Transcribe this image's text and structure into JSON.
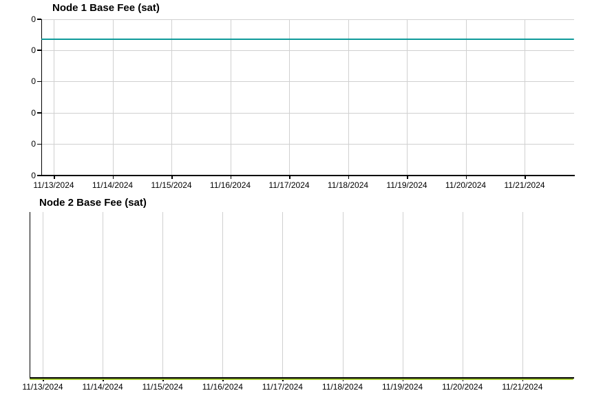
{
  "page": {
    "background_color": "#ffffff"
  },
  "chart_data": [
    {
      "type": "line",
      "title": "Node 1 Base Fee (sat)",
      "xlabel": "",
      "ylabel": "",
      "x": [
        "11/13/2024",
        "11/14/2024",
        "11/15/2024",
        "11/16/2024",
        "11/17/2024",
        "11/18/2024",
        "11/19/2024",
        "11/20/2024",
        "11/21/2024"
      ],
      "y_tick_labels": [
        "0",
        "0",
        "0",
        "0",
        "0",
        "0"
      ],
      "y_axis_note": "all six y-axis tick labels render as 0; axis treated as normalized 0-1",
      "ylim": [
        0,
        1
      ],
      "grid": "both",
      "legend": "none",
      "series": [
        {
          "name": "Node 1 Base Fee",
          "color": "#0d9a9a",
          "values": [
            0.87,
            0.87,
            0.87,
            0.87,
            0.87,
            0.87,
            0.87,
            0.87,
            0.87
          ],
          "shape": "flat horizontal line near top of plot"
        }
      ]
    },
    {
      "type": "line",
      "title": "Node 2 Base Fee (sat)",
      "xlabel": "",
      "ylabel": "",
      "x": [
        "11/13/2024",
        "11/14/2024",
        "11/15/2024",
        "11/16/2024",
        "11/17/2024",
        "11/18/2024",
        "11/19/2024",
        "11/20/2024",
        "11/21/2024"
      ],
      "y_tick_labels": [],
      "y_axis_note": "no y-axis tick labels shown",
      "ylim": [
        0,
        1
      ],
      "grid": "vertical-only",
      "legend": "none",
      "series": [
        {
          "name": "Node 2 Base Fee",
          "color": "#a9ce38",
          "values": [
            0,
            0,
            0,
            0,
            0,
            0,
            0,
            0,
            0
          ],
          "shape": "flat horizontal line along the bottom axis"
        }
      ]
    }
  ],
  "colors": {
    "grid": "#d0d0d0",
    "axis": "#000000",
    "text": "#000000",
    "node1_line": "#0d9a9a",
    "node2_line": "#a9ce38"
  }
}
